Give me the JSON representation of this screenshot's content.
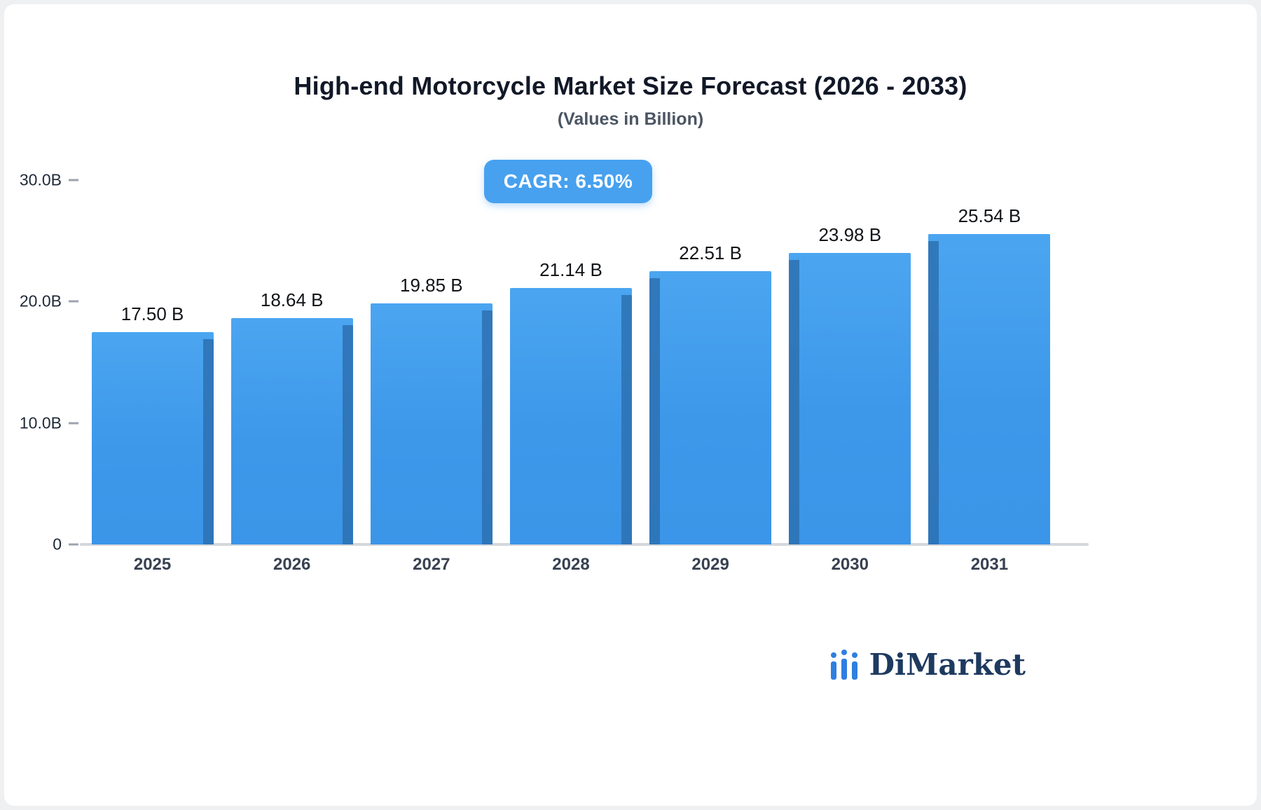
{
  "header": {
    "title": "High-end Motorcycle Market Size Forecast (2026 - 2033)",
    "subtitle": "(Values in Billion)"
  },
  "badge": {
    "label": "CAGR: 6.50%"
  },
  "chart_data": {
    "type": "bar",
    "title": "High-end Motorcycle Market Size Forecast (2026 - 2033)",
    "subtitle": "(Values in Billion)",
    "categories": [
      "2025",
      "2026",
      "2027",
      "2028",
      "2029",
      "2030",
      "2031"
    ],
    "values": [
      17.5,
      18.64,
      19.85,
      21.14,
      22.51,
      23.98,
      25.54
    ],
    "value_labels": [
      "17.50 B",
      "18.64 B",
      "19.85 B",
      "21.14 B",
      "22.51 B",
      "23.98 B",
      "25.54 B"
    ],
    "unit": "Billion",
    "ylim": [
      0,
      30
    ],
    "yticks": [
      {
        "value": 30,
        "label": "30.0B"
      },
      {
        "value": 20,
        "label": "20.0B"
      },
      {
        "value": 10,
        "label": "10.0B"
      },
      {
        "value": 0,
        "label": "0"
      }
    ],
    "grid": false,
    "legend": false,
    "annotations": [
      "CAGR: 6.50%"
    ]
  },
  "colors": {
    "bar_fill": "#3d98ea",
    "bar_fill_light": "#4ba5f0",
    "bar_side": "#2d71b2",
    "badge_bg": "#47a1ef",
    "title_text": "#111827",
    "subtitle_text": "#4b5563",
    "axis_text": "#374151",
    "baseline": "#d4d7db",
    "logo_navy": "#1e3a5f",
    "logo_blue": "#2f7fe0"
  },
  "footer": {
    "logo_text": "DiMarket"
  }
}
